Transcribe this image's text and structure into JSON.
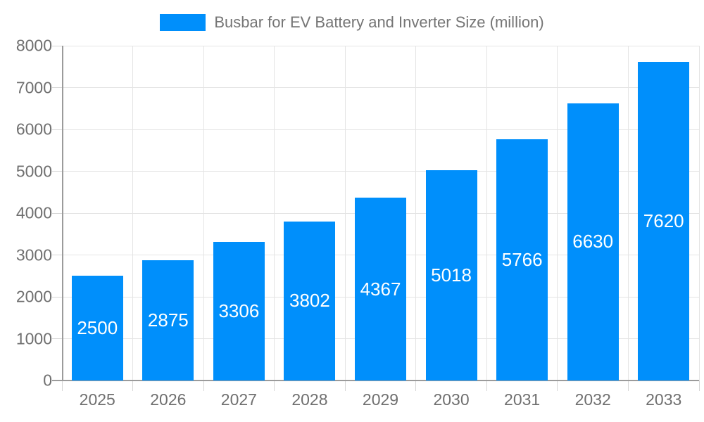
{
  "chart_data": {
    "type": "bar",
    "title": "",
    "legend": {
      "label": "Busbar for EV Battery and Inverter Size (million)",
      "position": "top"
    },
    "categories": [
      "2025",
      "2026",
      "2027",
      "2028",
      "2029",
      "2030",
      "2031",
      "2032",
      "2033"
    ],
    "series": [
      {
        "name": "Busbar for EV Battery and Inverter Size (million)",
        "values": [
          2500,
          2875,
          3306,
          3802,
          4367,
          5018,
          5766,
          6630,
          7620
        ],
        "color": "#008FFB"
      }
    ],
    "data_labels": [
      "2500",
      "2875",
      "3306",
      "3802",
      "4367",
      "5018",
      "5766",
      "6630",
      "7620"
    ],
    "xlabel": "",
    "ylabel": "",
    "ylim": [
      0,
      8000
    ],
    "ytick_step": 1000,
    "yticks": [
      "0",
      "1000",
      "2000",
      "3000",
      "4000",
      "5000",
      "6000",
      "7000",
      "8000"
    ],
    "grid": true,
    "colors": {
      "bar": "#008FFB",
      "bar_label_text": "#ffffff",
      "gridline": "#e4e4e4",
      "axis_line": "#9b9b9b",
      "tick_label": "#6f6f6f",
      "legend_text": "#757575",
      "background": "#ffffff"
    }
  }
}
